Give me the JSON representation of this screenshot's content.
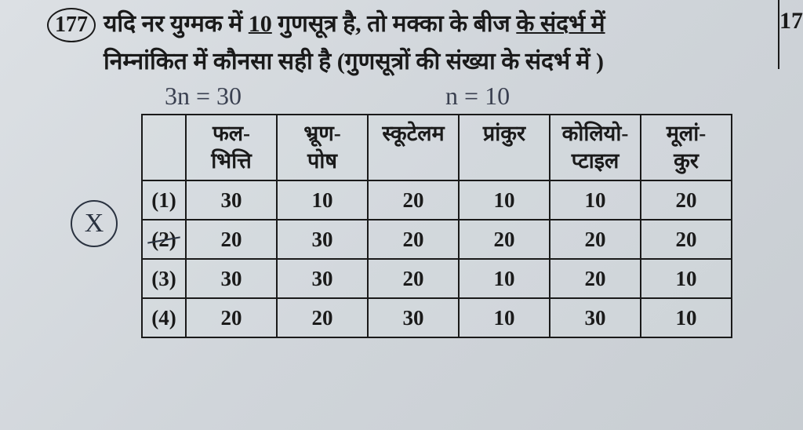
{
  "question": {
    "number": "177",
    "line1_pre": "यदि नर युग्मक में ",
    "line1_underlined": "10",
    "line1_mid": " गुणसूत्र है, तो मक्का के बीज ",
    "line1_underlined2": "के संदर्भ में",
    "line2": "निम्नांकित में कौनसा सही है (गुणसूत्रों की संख्या के संदर्भ में )"
  },
  "handwritten": {
    "left": "3n = 30",
    "right": "n = 10"
  },
  "table": {
    "headers": {
      "blank": "",
      "c1_l1": "फल-",
      "c1_l2": "भित्ति",
      "c2_l1": "भ्रूण-",
      "c2_l2": "पोष",
      "c3_l1": "स्कूटेलम",
      "c3_l2": "",
      "c4_l1": "प्रांकुर",
      "c4_l2": "",
      "c5_l1": "कोलियो-",
      "c5_l2": "प्टाइल",
      "c6_l1": "मूलां-",
      "c6_l2": "कुर"
    },
    "rows": [
      {
        "opt": "(1)",
        "v": [
          "30",
          "10",
          "20",
          "10",
          "10",
          "20"
        ]
      },
      {
        "opt": "(2)",
        "v": [
          "20",
          "30",
          "20",
          "20",
          "20",
          "20"
        ]
      },
      {
        "opt": "(3)",
        "v": [
          "30",
          "30",
          "20",
          "10",
          "20",
          "10"
        ]
      },
      {
        "opt": "(4)",
        "v": [
          "20",
          "20",
          "30",
          "10",
          "30",
          "10"
        ]
      }
    ]
  },
  "annotations": {
    "x_mark": "X",
    "right_edge": "17"
  }
}
